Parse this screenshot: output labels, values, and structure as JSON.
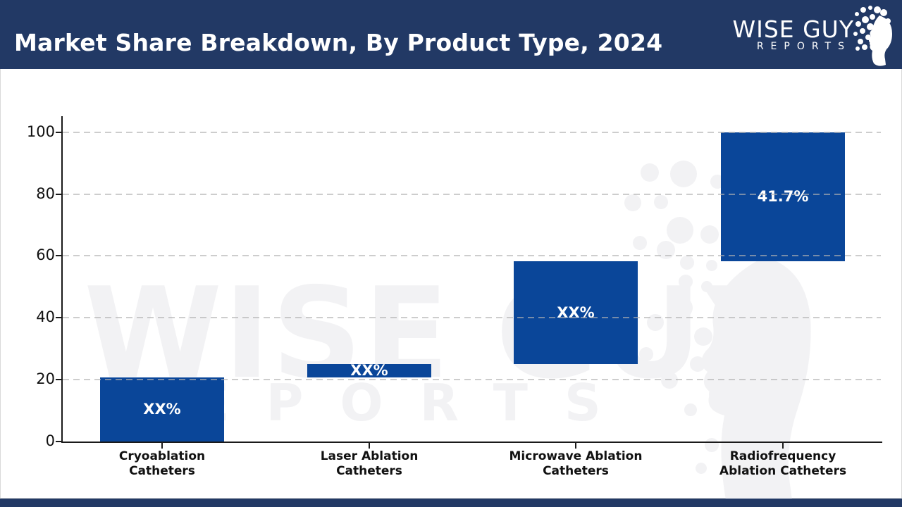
{
  "header": {
    "title": "Market Share Breakdown, By Product Type, 2024",
    "bg_color": "#223965"
  },
  "logo": {
    "name_line": "WISE GUY",
    "sub_line": "REPORTS"
  },
  "watermark": {
    "line1": "WISE GUY",
    "line2": "REPORTS"
  },
  "chart_data": {
    "type": "bar",
    "subtype": "floating-segment (waterfall-style market share)",
    "title": "Market Share Breakdown, By Product Type, 2024",
    "categories": [
      [
        "Cryoablation",
        "Catheters"
      ],
      [
        "Laser Ablation",
        "Catheters"
      ],
      [
        "Microwave Ablation",
        "Catheters"
      ],
      [
        "Radiofrequency",
        "Ablation Catheters"
      ]
    ],
    "bars": [
      {
        "label": "XX%",
        "start": 0,
        "end": 20.8
      },
      {
        "label": "XX%",
        "start": 20.8,
        "end": 25
      },
      {
        "label": "XX%",
        "start": 25,
        "end": 58.3
      },
      {
        "label": "41.7%",
        "start": 58.3,
        "end": 100
      }
    ],
    "yticks": [
      0,
      20,
      40,
      60,
      80,
      100
    ],
    "ylim": [
      0,
      105
    ],
    "grid": "dashed-horizontal-over-bars",
    "legend": "none",
    "bar_color": "#0a4699",
    "value_label_color": "#ffffff",
    "axis_color": "#1a1a1a",
    "header_color": "#223965",
    "watermark_color": "#f2f2f4"
  }
}
